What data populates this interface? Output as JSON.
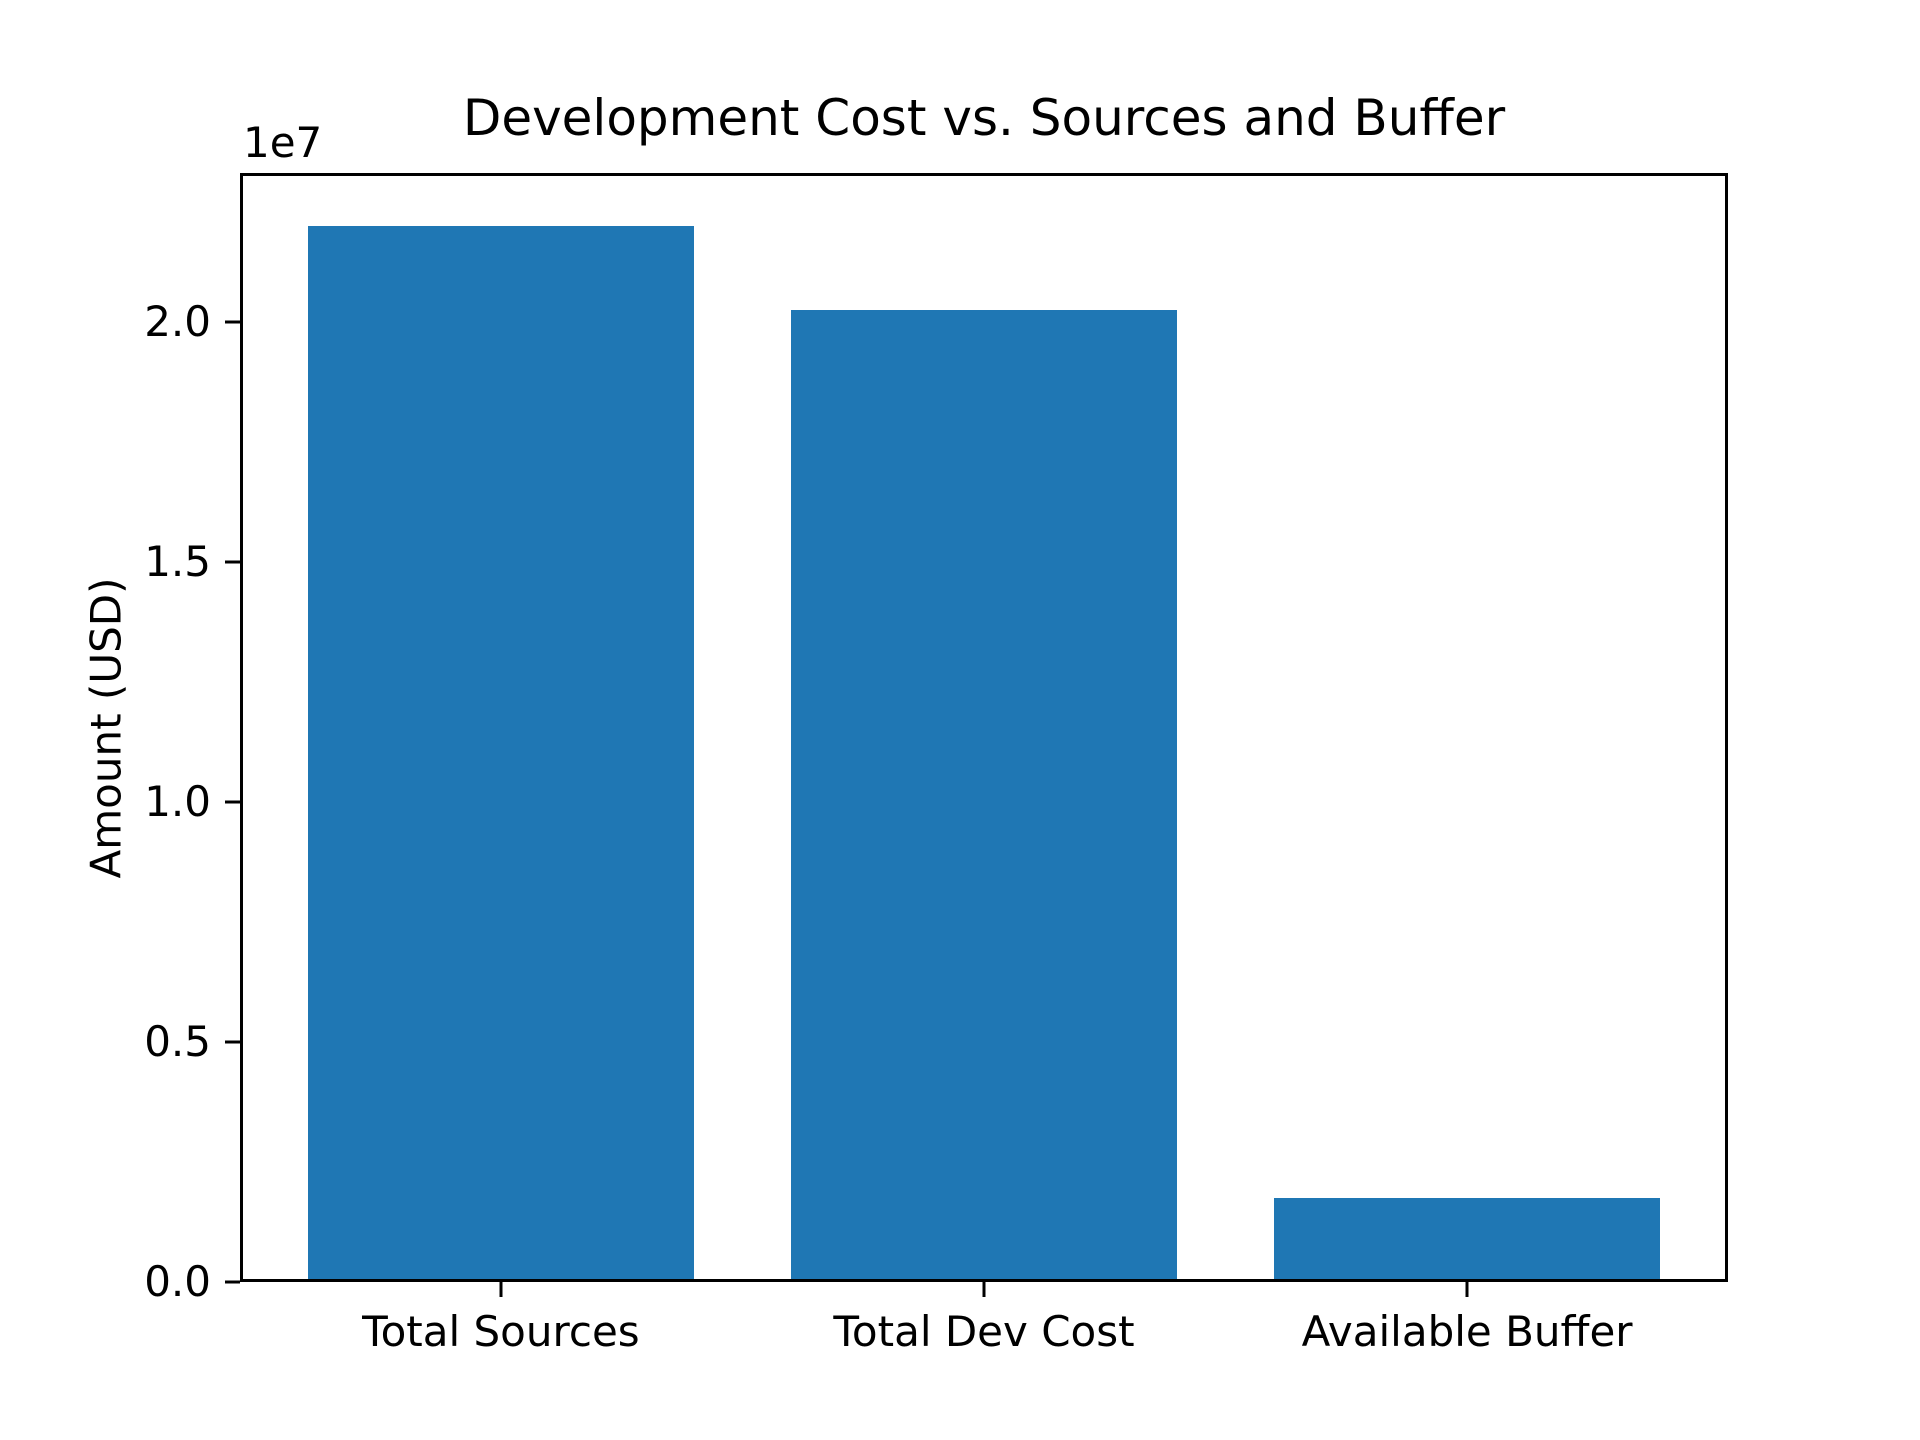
{
  "figure": {
    "background": "#ffffff",
    "text_color": "#000000",
    "spine_color": "#000000"
  },
  "chart_data": {
    "type": "bar",
    "title": "Development Cost vs. Sources and Buffer",
    "xlabel": "",
    "ylabel": "Amount (USD)",
    "categories": [
      "Total Sources",
      "Total Dev Cost",
      "Available Buffer"
    ],
    "values": [
      22000000,
      20250000,
      1750000
    ],
    "bar_color": "#1f77b4",
    "bar_width": 0.8,
    "xlim": [
      -0.54,
      2.54
    ],
    "ylim": [
      0,
      23100000
    ],
    "yticks": [
      0,
      5000000,
      10000000,
      15000000,
      20000000
    ],
    "ytick_labels": [
      "0.0",
      "0.5",
      "1.0",
      "1.5",
      "2.0"
    ],
    "y_offset_text": "1e7",
    "grid": false,
    "legend": false
  }
}
